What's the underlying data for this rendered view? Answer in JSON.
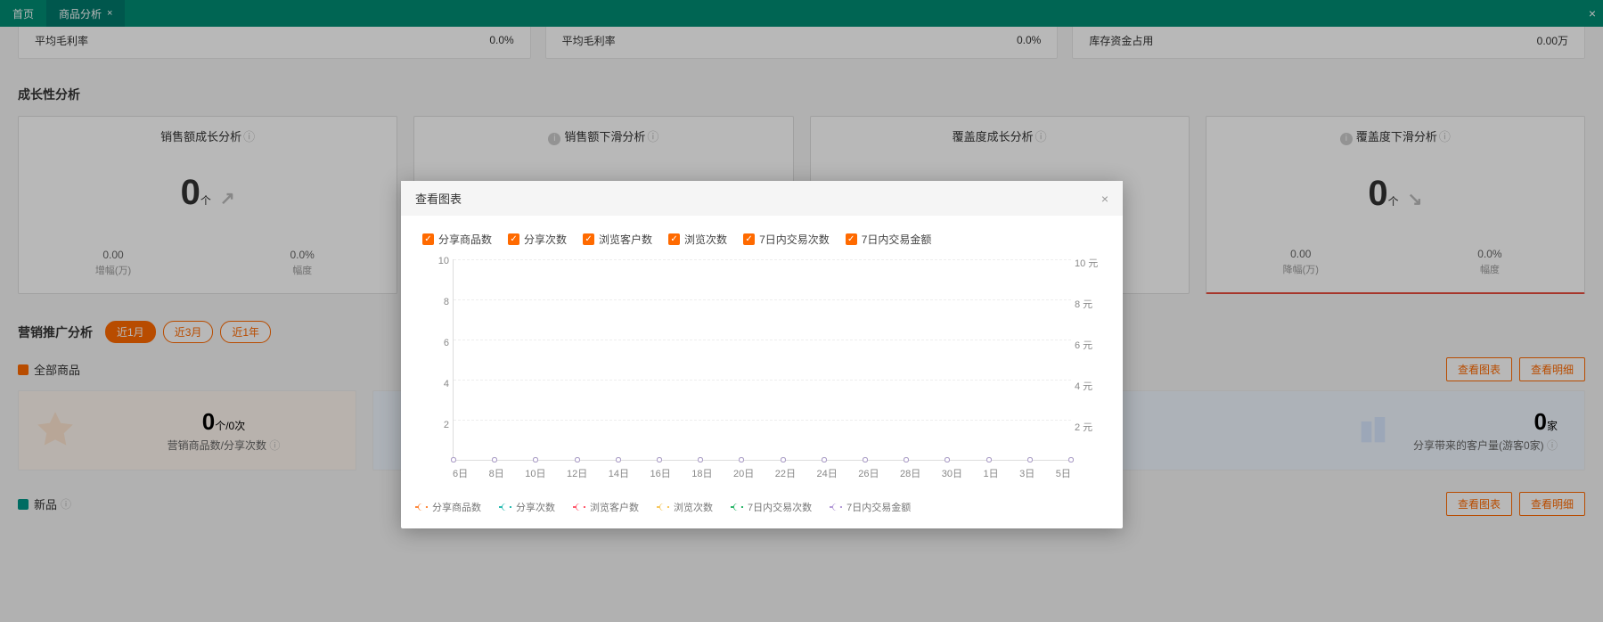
{
  "topbar": {
    "tabs": [
      {
        "label": "首页",
        "active": false
      },
      {
        "label": "商品分析",
        "active": true
      }
    ]
  },
  "metric_cards": [
    {
      "label": "平均毛利率",
      "value": "0.0%"
    },
    {
      "label": "平均毛利率",
      "value": "0.0%"
    },
    {
      "label": "库存资金占用",
      "value": "0.00万"
    }
  ],
  "growth": {
    "title": "成长性分析",
    "cards": [
      {
        "title": "销售额成长分析",
        "has_info": false,
        "big": "0",
        "unit": "个",
        "trend": "up",
        "left_val": "0.00",
        "left_lbl": "增幅(万)",
        "right_val": "0.0%",
        "right_lbl": "幅度",
        "red": false
      },
      {
        "title": "销售额下滑分析",
        "has_info": true
      },
      {
        "title": "覆盖度成长分析",
        "has_info": false
      },
      {
        "title": "覆盖度下滑分析",
        "has_info": true,
        "big": "0",
        "unit": "个",
        "trend": "down",
        "left_val": "0.00",
        "left_lbl": "降幅(万)",
        "right_val": "0.0%",
        "right_lbl": "幅度",
        "red": true
      }
    ]
  },
  "push": {
    "title": "营销推广分析",
    "pills": [
      {
        "label": "近1月",
        "active": true
      },
      {
        "label": "近3月",
        "active": false
      },
      {
        "label": "近1年",
        "active": false
      }
    ],
    "sections": [
      {
        "dot": "orange",
        "title": "全部商品",
        "btns": [
          "查看图表",
          "查看明细"
        ],
        "left_big": "0",
        "left_unit": "个/0次",
        "left_desc": "营销商品数/分享次数",
        "right_big": "0",
        "right_unit": "家",
        "right_desc": "分享带来的客户量(游客0家)"
      },
      {
        "dot": "teal",
        "title": "新品",
        "btns": [
          "查看图表",
          "查看明细"
        ]
      }
    ]
  },
  "modal": {
    "title": "查看图表",
    "checkboxes": [
      "分享商品数",
      "分享次数",
      "浏览客户数",
      "浏览次数",
      "7日内交易次数",
      "7日内交易金额"
    ],
    "chart": {
      "y_left": [
        "10",
        "8",
        "6",
        "4",
        "2",
        ""
      ],
      "y_right": [
        "10 元",
        "8 元",
        "6 元",
        "4 元",
        "2 元",
        ""
      ],
      "x": [
        "6日",
        "8日",
        "10日",
        "12日",
        "14日",
        "16日",
        "18日",
        "20日",
        "22日",
        "24日",
        "26日",
        "28日",
        "30日",
        "1日",
        "3日",
        "5日"
      ],
      "series_colors": [
        "#ff8a3d",
        "#2dbdb3",
        "#ff5b6e",
        "#f7c85f",
        "#2fb66b",
        "#b49bd8"
      ],
      "series_names": [
        "分享商品数",
        "分享次数",
        "浏览客户数",
        "浏览次数",
        "7日内交易次数",
        "7日内交易金额"
      ],
      "background": "#ffffff",
      "grid_color": "#eeeeee",
      "axis_color": "#dddddd",
      "tick_font_size": 11,
      "legend_font_size": 11,
      "all_zero": true
    }
  }
}
